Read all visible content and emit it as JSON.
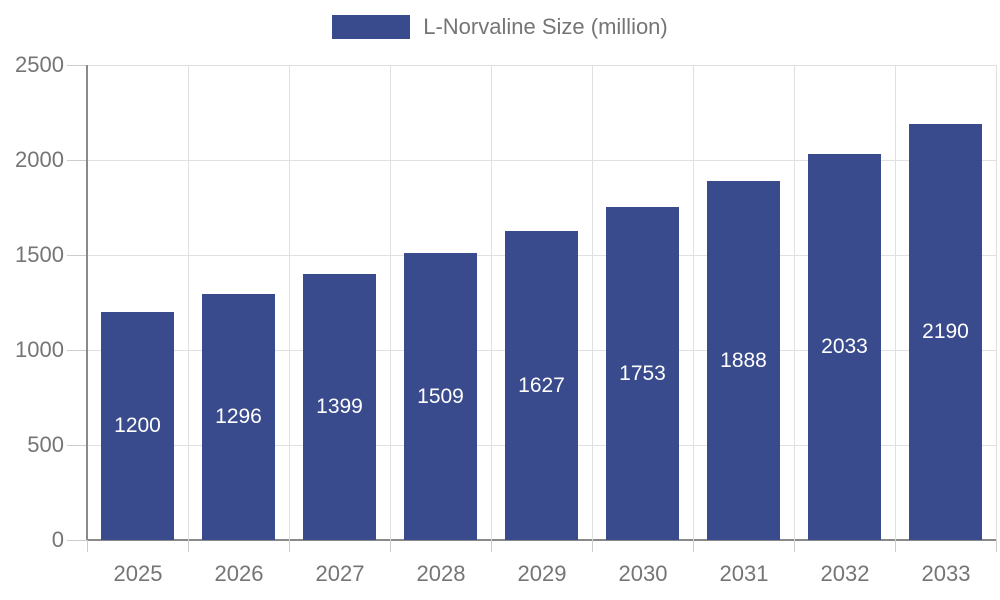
{
  "legend": {
    "label": "L-Norvaline Size (million)",
    "swatch_color": "#394B8C"
  },
  "chart_data": {
    "type": "bar",
    "title": "",
    "categories": [
      "2025",
      "2026",
      "2027",
      "2028",
      "2029",
      "2030",
      "2031",
      "2032",
      "2033"
    ],
    "series": [
      {
        "name": "L-Norvaline Size (million)",
        "values": [
          1200,
          1296,
          1399,
          1509,
          1627,
          1753,
          1888,
          2033,
          2190
        ]
      }
    ],
    "xlabel": "",
    "ylabel": "",
    "ylim": [
      0,
      2500
    ],
    "yticks": [
      0,
      500,
      1000,
      1500,
      2000,
      2500
    ],
    "grid": true,
    "legend_position": "top",
    "bar_labels_shown": true,
    "bar_color": "#394B8C",
    "label_color": "#ffffff",
    "axis_text_color": "#757575",
    "gridline_color": "#e0e0e0",
    "tick_color": "#cccccc",
    "axis_line_color": "#8a8a8a"
  }
}
